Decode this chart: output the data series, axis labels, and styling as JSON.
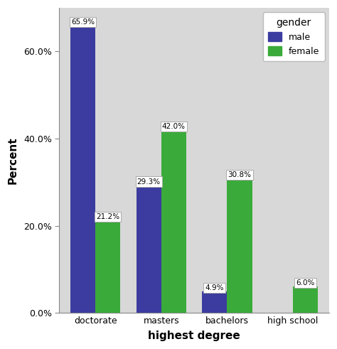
{
  "categories": [
    "doctorate",
    "masters",
    "bachelors",
    "high school"
  ],
  "male_values": [
    65.9,
    29.3,
    4.9,
    0.0
  ],
  "female_values": [
    21.2,
    42.0,
    30.8,
    6.0
  ],
  "male_labels": [
    "65.9%",
    "29.3%",
    "4.9%",
    ""
  ],
  "female_labels": [
    "21.2%",
    "42.0%",
    "30.8%",
    "6.0%"
  ],
  "male_color": "#3c3ca0",
  "female_color": "#3aaa3a",
  "xlabel": "highest degree",
  "ylabel": "Percent",
  "ylim": [
    0,
    70
  ],
  "yticks": [
    0.0,
    20.0,
    40.0,
    60.0
  ],
  "ytick_labels": [
    "0.0%",
    "20.0%",
    "40.0%",
    "60.0%"
  ],
  "legend_title": "gender",
  "legend_labels": [
    "male",
    "female"
  ],
  "plot_bg_color": "#d8d8d8",
  "fig_bg_color": "#ffffff",
  "bar_width": 0.38,
  "label_fontsize": 7.5,
  "axis_label_fontsize": 11,
  "tick_fontsize": 9,
  "legend_fontsize": 9,
  "legend_title_fontsize": 10
}
